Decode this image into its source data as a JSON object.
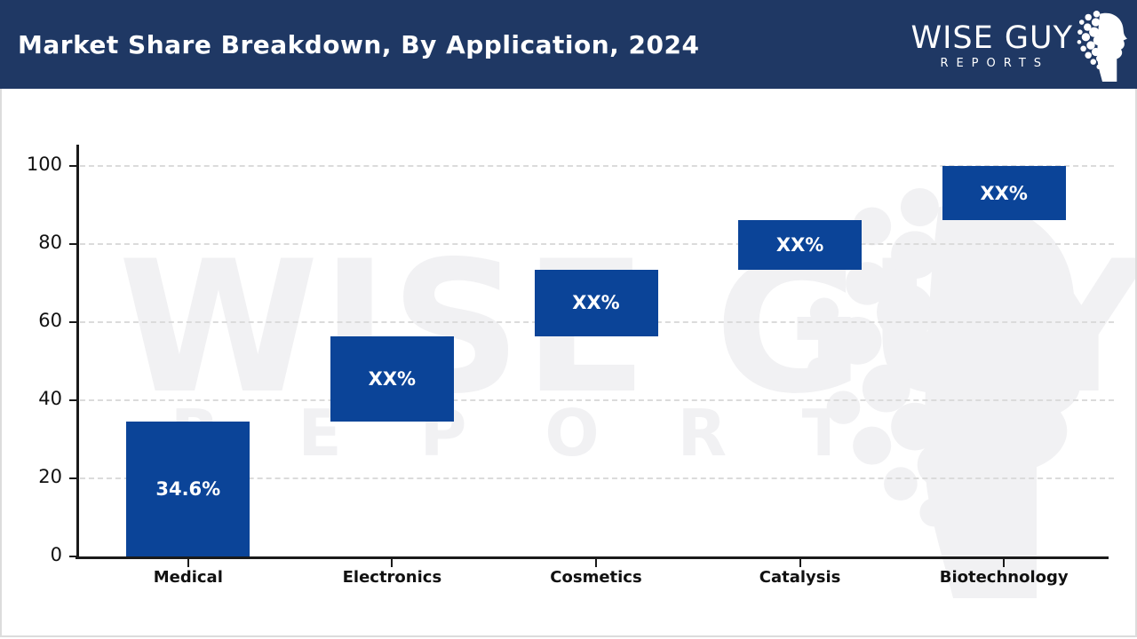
{
  "header": {
    "title": "Market Share Breakdown, By Application, 2024",
    "logo": {
      "line1": "WISE GUY",
      "line2": "REPORTS"
    }
  },
  "watermark": {
    "line1": "WISE GUY",
    "line2": "REPORTS"
  },
  "colors": {
    "header_background": "#1f3864",
    "bar_blue": "#0b4498",
    "bar_label_text": "#ffffff",
    "gridline": "#dbdbdb",
    "axis": "#1a1a1a",
    "watermark": "#f1f1f3"
  },
  "chart_data": {
    "type": "bar",
    "subtype": "waterfall",
    "title": "Market Share Breakdown, By Application, 2024",
    "xlabel": "",
    "ylabel": "",
    "ylim": [
      0,
      105
    ],
    "yticks": [
      0,
      20,
      40,
      60,
      80,
      100
    ],
    "grid": "horizontal-dashed",
    "legend": "none",
    "bar_color": "#0b4498",
    "label_color": "#ffffff",
    "categories": [
      "Medical",
      "Electronics",
      "Cosmetics",
      "Catalysis",
      "Biotechnology"
    ],
    "segments": [
      {
        "category": "Medical",
        "start": 0,
        "end": 34.6,
        "value": 34.6,
        "label": "34.6%"
      },
      {
        "category": "Electronics",
        "start": 34.6,
        "end": 56.3,
        "value": 21.7,
        "label": "XX%"
      },
      {
        "category": "Cosmetics",
        "start": 56.3,
        "end": 73.5,
        "value": 17.2,
        "label": "XX%"
      },
      {
        "category": "Catalysis",
        "start": 73.5,
        "end": 86.1,
        "value": 12.6,
        "label": "XX%"
      },
      {
        "category": "Biotechnology",
        "start": 86.1,
        "end": 100,
        "value": 13.9,
        "label": "XX%"
      }
    ]
  }
}
